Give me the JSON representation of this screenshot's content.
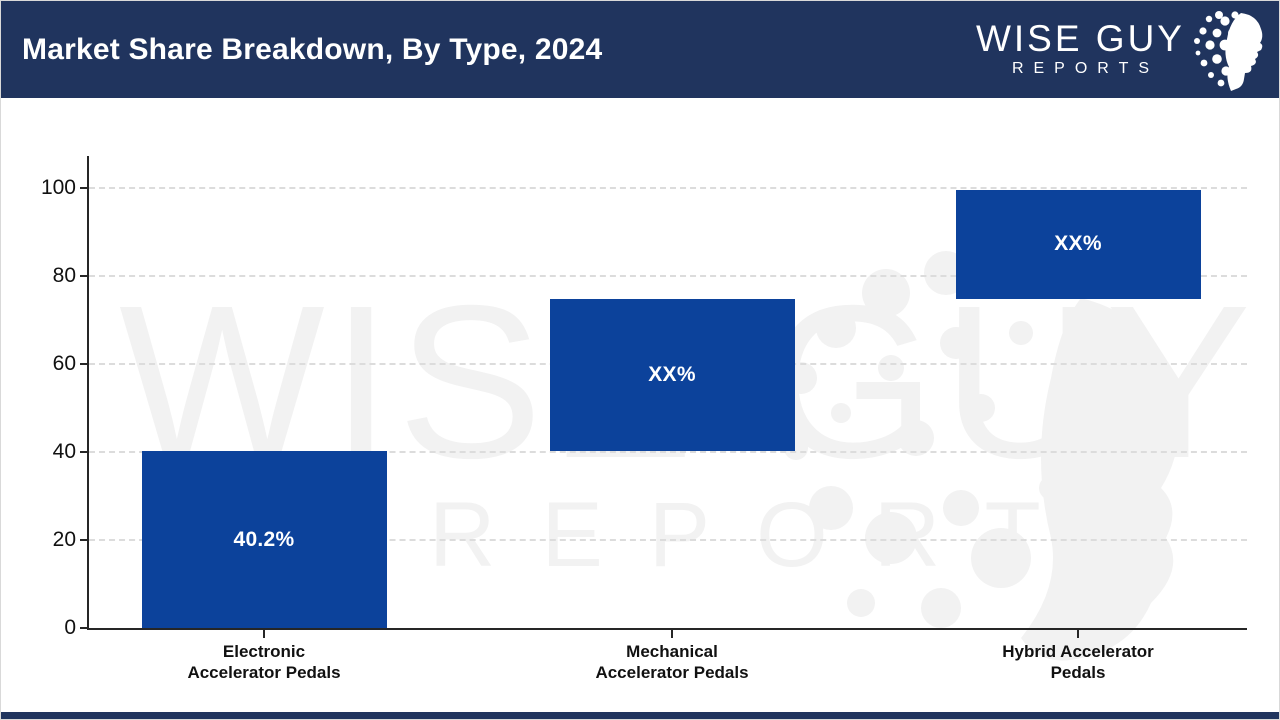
{
  "header": {
    "title": "Market Share Breakdown, By Type, 2024",
    "logo": {
      "line1": "WISE GUY",
      "line2": "REPORTS"
    }
  },
  "watermark": {
    "line1": "WISE GUY",
    "line2": "REPORTS"
  },
  "colors": {
    "header_bg": "#20345e",
    "bar": "#0c429b",
    "bar_label": "#ffffff",
    "gridline": "#dcdcdc",
    "axis": "#262626",
    "watermark": "#f2f2f2"
  },
  "chart_data": {
    "type": "bar",
    "subtype": "waterfall",
    "title": "Market Share Breakdown, By Type, 2024",
    "categories": [
      "Electronic Accelerator Pedals",
      "Mechanical Accelerator Pedals",
      "Hybrid Accelerator Pedals"
    ],
    "segments": [
      {
        "category_lines": [
          "Electronic",
          "Accelerator Pedals"
        ],
        "start": 0,
        "end": 40.2,
        "bar_label": "40.2%"
      },
      {
        "category_lines": [
          "Mechanical",
          "Accelerator Pedals"
        ],
        "start": 40.2,
        "end": 74.9,
        "bar_label": "XX%"
      },
      {
        "category_lines": [
          "Hybrid Accelerator",
          "Pedals"
        ],
        "start": 74.9,
        "end": 99.6,
        "bar_label": "XX%"
      }
    ],
    "yticks": [
      0,
      20,
      40,
      60,
      80,
      100
    ],
    "ylim": [
      0,
      107
    ],
    "xlabel": "",
    "ylabel": "",
    "grid": "horizontal-dashed",
    "legend": "none"
  }
}
